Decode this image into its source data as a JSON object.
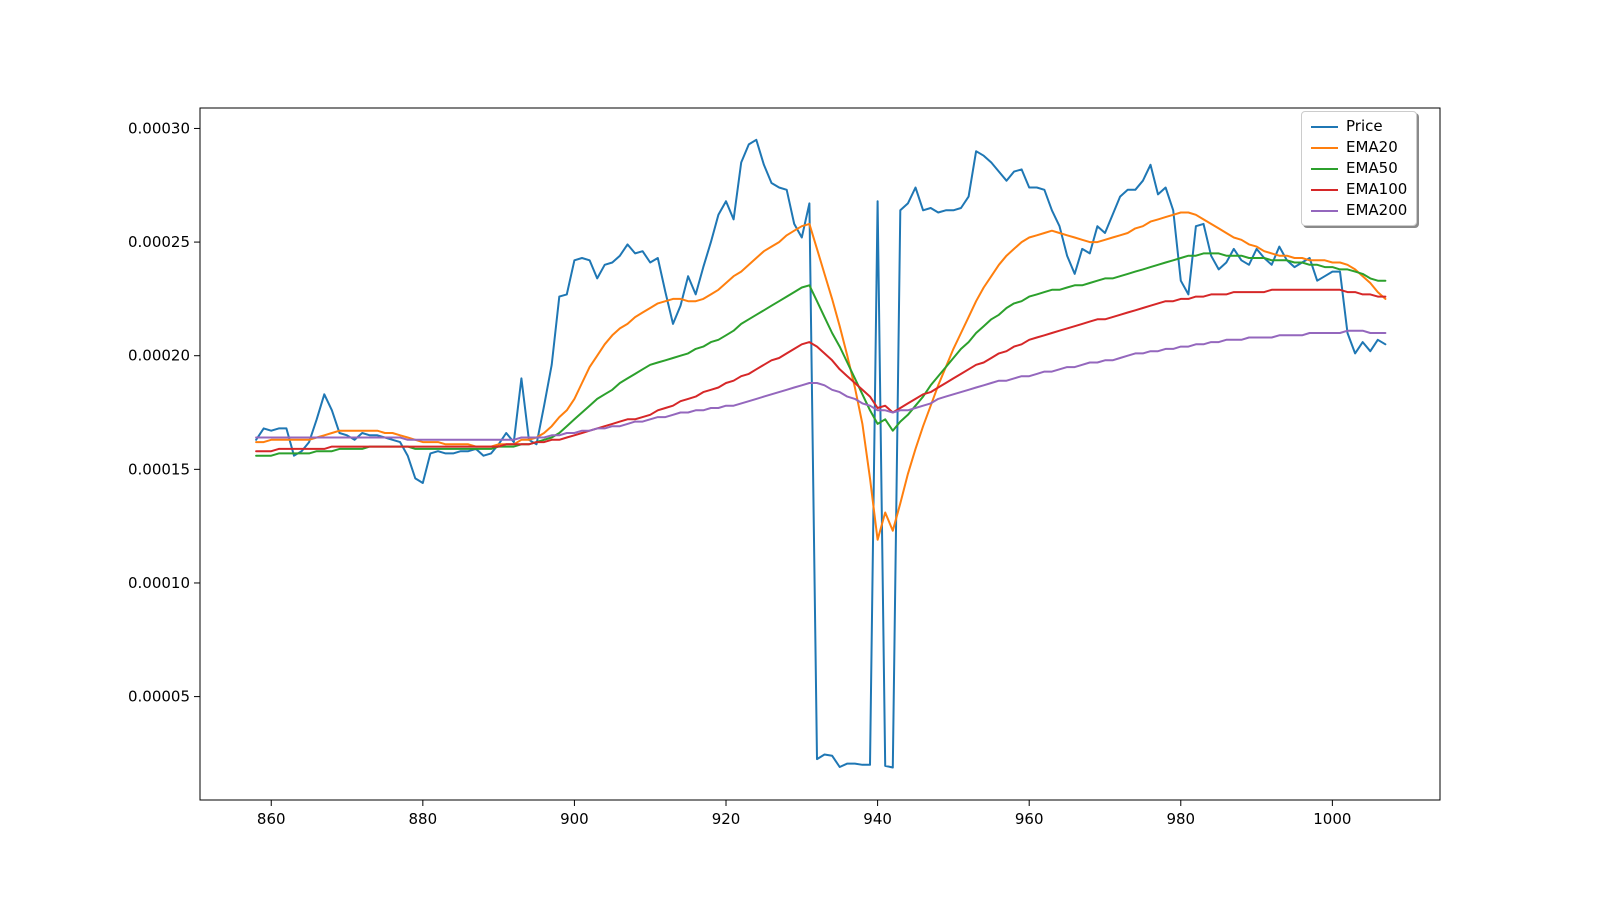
{
  "figure": {
    "background": "#ffffff",
    "plot_border_color": "#000000",
    "tick_color": "#000000"
  },
  "chart_data": {
    "type": "line",
    "title": "",
    "xlabel": "",
    "ylabel": "",
    "grid": false,
    "legend_position": "upper right",
    "xlim": [
      850.6,
      1014.2
    ],
    "ylim": [
      4.5e-06,
      0.000309
    ],
    "x_ticks": [
      860,
      880,
      900,
      920,
      940,
      960,
      980,
      1000
    ],
    "x_tick_labels": [
      "860",
      "880",
      "900",
      "920",
      "940",
      "960",
      "980",
      "1000"
    ],
    "y_ticks": [
      5e-05,
      0.0001,
      0.00015,
      0.0002,
      0.00025,
      0.0003
    ],
    "y_tick_labels": [
      "0.00005",
      "0.00010",
      "0.00015",
      "0.00020",
      "0.00025",
      "0.00030"
    ],
    "x_start": 858,
    "x_step": 1,
    "series": [
      {
        "name": "Price",
        "color": "#1f77b4",
        "values": [
          0.000163,
          0.000168,
          0.000167,
          0.000168,
          0.000168,
          0.000156,
          0.000158,
          0.000162,
          0.000172,
          0.000183,
          0.000176,
          0.000166,
          0.000165,
          0.000163,
          0.000166,
          0.000165,
          0.000165,
          0.000164,
          0.000163,
          0.000162,
          0.000156,
          0.000146,
          0.000144,
          0.000157,
          0.000158,
          0.000157,
          0.000157,
          0.000158,
          0.000158,
          0.000159,
          0.000156,
          0.000157,
          0.000161,
          0.000166,
          0.000162,
          0.00019,
          0.000163,
          0.000161,
          0.000178,
          0.000196,
          0.000226,
          0.000227,
          0.000242,
          0.000243,
          0.000242,
          0.000234,
          0.00024,
          0.000241,
          0.000244,
          0.000249,
          0.000245,
          0.000246,
          0.000241,
          0.000243,
          0.000228,
          0.000214,
          0.000222,
          0.000235,
          0.000227,
          0.000239,
          0.00025,
          0.000262,
          0.000268,
          0.00026,
          0.000285,
          0.000293,
          0.000295,
          0.000284,
          0.000276,
          0.000274,
          0.000273,
          0.000258,
          0.000252,
          0.000267,
          2.25e-05,
          2.45e-05,
          2.4e-05,
          1.9e-05,
          2.05e-05,
          2.05e-05,
          2e-05,
          2e-05,
          0.000268,
          1.95e-05,
          1.88e-05,
          0.000264,
          0.000267,
          0.000274,
          0.000264,
          0.000265,
          0.000263,
          0.000264,
          0.000264,
          0.000265,
          0.00027,
          0.00029,
          0.000288,
          0.000285,
          0.000281,
          0.000277,
          0.000281,
          0.000282,
          0.000274,
          0.000274,
          0.000273,
          0.000264,
          0.000257,
          0.000244,
          0.000236,
          0.000247,
          0.000245,
          0.000257,
          0.000254,
          0.000262,
          0.00027,
          0.000273,
          0.000273,
          0.000277,
          0.000284,
          0.000271,
          0.000274,
          0.000264,
          0.000233,
          0.000227,
          0.000257,
          0.000258,
          0.000244,
          0.000238,
          0.000241,
          0.000247,
          0.000242,
          0.00024,
          0.000247,
          0.000243,
          0.00024,
          0.000248,
          0.000242,
          0.000239,
          0.000241,
          0.000243,
          0.000233,
          0.000235,
          0.000237,
          0.000237,
          0.00021,
          0.000201,
          0.000206,
          0.000202,
          0.000207,
          0.000205
        ]
      },
      {
        "name": "EMA20",
        "color": "#ff7f0e",
        "values": [
          0.000162,
          0.000162,
          0.000163,
          0.000163,
          0.000163,
          0.000163,
          0.000163,
          0.000163,
          0.000164,
          0.000165,
          0.000166,
          0.000167,
          0.000167,
          0.000167,
          0.000167,
          0.000167,
          0.000167,
          0.000166,
          0.000166,
          0.000165,
          0.000164,
          0.000163,
          0.000162,
          0.000162,
          0.000162,
          0.000161,
          0.000161,
          0.000161,
          0.000161,
          0.00016,
          0.00016,
          0.00016,
          0.000161,
          0.000161,
          0.000161,
          0.000163,
          0.000163,
          0.000164,
          0.000166,
          0.000169,
          0.000173,
          0.000176,
          0.000181,
          0.000188,
          0.000195,
          0.0002,
          0.000205,
          0.000209,
          0.000212,
          0.000214,
          0.000217,
          0.000219,
          0.000221,
          0.000223,
          0.000224,
          0.000225,
          0.000225,
          0.000224,
          0.000224,
          0.000225,
          0.000227,
          0.000229,
          0.000232,
          0.000235,
          0.000237,
          0.00024,
          0.000243,
          0.000246,
          0.000248,
          0.00025,
          0.000253,
          0.000255,
          0.000257,
          0.000258,
          0.000247,
          0.000236,
          0.000225,
          0.000213,
          0.0002,
          0.000186,
          0.00017,
          0.000146,
          0.000119,
          0.000131,
          0.000123,
          0.000135,
          0.000148,
          0.000159,
          0.000169,
          0.000178,
          0.000187,
          0.000195,
          0.000203,
          0.00021,
          0.000217,
          0.000224,
          0.00023,
          0.000235,
          0.00024,
          0.000244,
          0.000247,
          0.00025,
          0.000252,
          0.000253,
          0.000254,
          0.000255,
          0.000254,
          0.000253,
          0.000252,
          0.000251,
          0.00025,
          0.00025,
          0.000251,
          0.000252,
          0.000253,
          0.000254,
          0.000256,
          0.000257,
          0.000259,
          0.00026,
          0.000261,
          0.000262,
          0.000263,
          0.000263,
          0.000262,
          0.00026,
          0.000258,
          0.000256,
          0.000254,
          0.000252,
          0.000251,
          0.000249,
          0.000248,
          0.000246,
          0.000245,
          0.000244,
          0.000244,
          0.000243,
          0.000243,
          0.000242,
          0.000242,
          0.000242,
          0.000241,
          0.000241,
          0.00024,
          0.000238,
          0.000235,
          0.000232,
          0.000228,
          0.000225
        ]
      },
      {
        "name": "EMA50",
        "color": "#2ca02c",
        "values": [
          0.000156,
          0.000156,
          0.000156,
          0.000157,
          0.000157,
          0.000157,
          0.000157,
          0.000157,
          0.000158,
          0.000158,
          0.000158,
          0.000159,
          0.000159,
          0.000159,
          0.000159,
          0.00016,
          0.00016,
          0.00016,
          0.00016,
          0.00016,
          0.00016,
          0.000159,
          0.000159,
          0.000159,
          0.000159,
          0.000159,
          0.000159,
          0.000159,
          0.000159,
          0.000159,
          0.000159,
          0.000159,
          0.00016,
          0.00016,
          0.00016,
          0.000161,
          0.000161,
          0.000162,
          0.000163,
          0.000164,
          0.000166,
          0.000169,
          0.000172,
          0.000175,
          0.000178,
          0.000181,
          0.000183,
          0.000185,
          0.000188,
          0.00019,
          0.000192,
          0.000194,
          0.000196,
          0.000197,
          0.000198,
          0.000199,
          0.0002,
          0.000201,
          0.000203,
          0.000204,
          0.000206,
          0.000207,
          0.000209,
          0.000211,
          0.000214,
          0.000216,
          0.000218,
          0.00022,
          0.000222,
          0.000224,
          0.000226,
          0.000228,
          0.00023,
          0.000231,
          0.000224,
          0.000217,
          0.00021,
          0.000204,
          0.000197,
          0.00019,
          0.000183,
          0.000176,
          0.00017,
          0.000172,
          0.000167,
          0.000171,
          0.000174,
          0.000178,
          0.000182,
          0.000187,
          0.000191,
          0.000195,
          0.000199,
          0.000203,
          0.000206,
          0.00021,
          0.000213,
          0.000216,
          0.000218,
          0.000221,
          0.000223,
          0.000224,
          0.000226,
          0.000227,
          0.000228,
          0.000229,
          0.000229,
          0.00023,
          0.000231,
          0.000231,
          0.000232,
          0.000233,
          0.000234,
          0.000234,
          0.000235,
          0.000236,
          0.000237,
          0.000238,
          0.000239,
          0.00024,
          0.000241,
          0.000242,
          0.000243,
          0.000244,
          0.000244,
          0.000245,
          0.000245,
          0.000245,
          0.000244,
          0.000244,
          0.000244,
          0.000243,
          0.000243,
          0.000243,
          0.000242,
          0.000242,
          0.000242,
          0.000241,
          0.000241,
          0.00024,
          0.00024,
          0.000239,
          0.000239,
          0.000238,
          0.000238,
          0.000237,
          0.000236,
          0.000234,
          0.000233,
          0.000233
        ]
      },
      {
        "name": "EMA100",
        "color": "#d62728",
        "values": [
          0.000158,
          0.000158,
          0.000158,
          0.000159,
          0.000159,
          0.000159,
          0.000159,
          0.000159,
          0.000159,
          0.000159,
          0.00016,
          0.00016,
          0.00016,
          0.00016,
          0.00016,
          0.00016,
          0.00016,
          0.00016,
          0.00016,
          0.00016,
          0.00016,
          0.00016,
          0.00016,
          0.00016,
          0.00016,
          0.00016,
          0.00016,
          0.00016,
          0.00016,
          0.00016,
          0.00016,
          0.00016,
          0.00016,
          0.000161,
          0.000161,
          0.000161,
          0.000161,
          0.000162,
          0.000162,
          0.000163,
          0.000163,
          0.000164,
          0.000165,
          0.000166,
          0.000167,
          0.000168,
          0.000169,
          0.00017,
          0.000171,
          0.000172,
          0.000172,
          0.000173,
          0.000174,
          0.000176,
          0.000177,
          0.000178,
          0.00018,
          0.000181,
          0.000182,
          0.000184,
          0.000185,
          0.000186,
          0.000188,
          0.000189,
          0.000191,
          0.000192,
          0.000194,
          0.000196,
          0.000198,
          0.000199,
          0.000201,
          0.000203,
          0.000205,
          0.000206,
          0.000204,
          0.000201,
          0.000198,
          0.000194,
          0.000191,
          0.000188,
          0.000185,
          0.000182,
          0.000177,
          0.000178,
          0.000175,
          0.000177,
          0.000179,
          0.000181,
          0.000183,
          0.000184,
          0.000186,
          0.000188,
          0.00019,
          0.000192,
          0.000194,
          0.000196,
          0.000197,
          0.000199,
          0.000201,
          0.000202,
          0.000204,
          0.000205,
          0.000207,
          0.000208,
          0.000209,
          0.00021,
          0.000211,
          0.000212,
          0.000213,
          0.000214,
          0.000215,
          0.000216,
          0.000216,
          0.000217,
          0.000218,
          0.000219,
          0.00022,
          0.000221,
          0.000222,
          0.000223,
          0.000224,
          0.000224,
          0.000225,
          0.000225,
          0.000226,
          0.000226,
          0.000227,
          0.000227,
          0.000227,
          0.000228,
          0.000228,
          0.000228,
          0.000228,
          0.000228,
          0.000229,
          0.000229,
          0.000229,
          0.000229,
          0.000229,
          0.000229,
          0.000229,
          0.000229,
          0.000229,
          0.000229,
          0.000228,
          0.000228,
          0.000227,
          0.000227,
          0.000226,
          0.000226
        ]
      },
      {
        "name": "EMA200",
        "color": "#9467bd",
        "values": [
          0.000164,
          0.000164,
          0.000164,
          0.000164,
          0.000164,
          0.000164,
          0.000164,
          0.000164,
          0.000164,
          0.000164,
          0.000164,
          0.000164,
          0.000164,
          0.000164,
          0.000164,
          0.000164,
          0.000164,
          0.000164,
          0.000164,
          0.000164,
          0.000163,
          0.000163,
          0.000163,
          0.000163,
          0.000163,
          0.000163,
          0.000163,
          0.000163,
          0.000163,
          0.000163,
          0.000163,
          0.000163,
          0.000163,
          0.000163,
          0.000163,
          0.000164,
          0.000164,
          0.000164,
          0.000164,
          0.000165,
          0.000165,
          0.000166,
          0.000166,
          0.000167,
          0.000167,
          0.000168,
          0.000168,
          0.000169,
          0.000169,
          0.00017,
          0.000171,
          0.000171,
          0.000172,
          0.000173,
          0.000173,
          0.000174,
          0.000175,
          0.000175,
          0.000176,
          0.000176,
          0.000177,
          0.000177,
          0.000178,
          0.000178,
          0.000179,
          0.00018,
          0.000181,
          0.000182,
          0.000183,
          0.000184,
          0.000185,
          0.000186,
          0.000187,
          0.000188,
          0.000188,
          0.000187,
          0.000185,
          0.000184,
          0.000182,
          0.000181,
          0.000179,
          0.000178,
          0.000176,
          0.000176,
          0.000175,
          0.000176,
          0.000176,
          0.000177,
          0.000178,
          0.000179,
          0.000181,
          0.000182,
          0.000183,
          0.000184,
          0.000185,
          0.000186,
          0.000187,
          0.000188,
          0.000189,
          0.000189,
          0.00019,
          0.000191,
          0.000191,
          0.000192,
          0.000193,
          0.000193,
          0.000194,
          0.000195,
          0.000195,
          0.000196,
          0.000197,
          0.000197,
          0.000198,
          0.000198,
          0.000199,
          0.0002,
          0.000201,
          0.000201,
          0.000202,
          0.000202,
          0.000203,
          0.000203,
          0.000204,
          0.000204,
          0.000205,
          0.000205,
          0.000206,
          0.000206,
          0.000207,
          0.000207,
          0.000207,
          0.000208,
          0.000208,
          0.000208,
          0.000208,
          0.000209,
          0.000209,
          0.000209,
          0.000209,
          0.00021,
          0.00021,
          0.00021,
          0.00021,
          0.00021,
          0.000211,
          0.000211,
          0.000211,
          0.00021,
          0.00021,
          0.00021
        ]
      }
    ]
  }
}
